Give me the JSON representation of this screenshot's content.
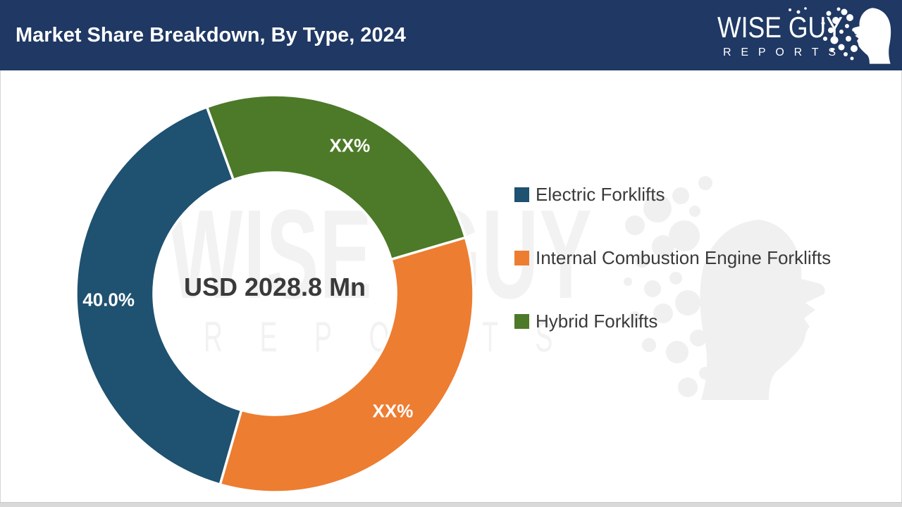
{
  "header": {
    "title": "Market Share Breakdown, By Type, 2024",
    "bg_color": "#1F3864",
    "text_color": "#FFFFFF",
    "logo": {
      "line1": "WISE GUY",
      "line2": "REPORTS"
    }
  },
  "watermark": {
    "line1": "WISE GUY",
    "line2": "REPORTS",
    "color": "#F2F2F2"
  },
  "chart_data": {
    "type": "pie",
    "subtype": "donut",
    "title": "Market Share Breakdown, By Type, 2024",
    "center_text": "USD 2028.8 Mn",
    "start_angle_deg": -20,
    "slice_label_color": "#FFFFFF",
    "slices_clockwise": [
      {
        "name": "Hybrid Forklifts",
        "value_pct": 26,
        "label": "XX%",
        "color": "#4C7A28"
      },
      {
        "name": "Internal Combustion Engine Forklifts",
        "value_pct": 34,
        "label": "XX%",
        "color": "#ED7D31"
      },
      {
        "name": "Electric Forklifts",
        "value_pct": 40,
        "label": "40.0%",
        "color": "#1F5170"
      }
    ],
    "legend_position": "right"
  },
  "legend": {
    "items": [
      {
        "label": "Electric Forklifts",
        "color": "#1F5170"
      },
      {
        "label": "Internal Combustion Engine Forklifts",
        "color": "#ED7D31"
      },
      {
        "label": "Hybrid Forklifts",
        "color": "#4C7A28"
      }
    ]
  },
  "footer": {
    "bar_color": "#D9D9D9"
  }
}
